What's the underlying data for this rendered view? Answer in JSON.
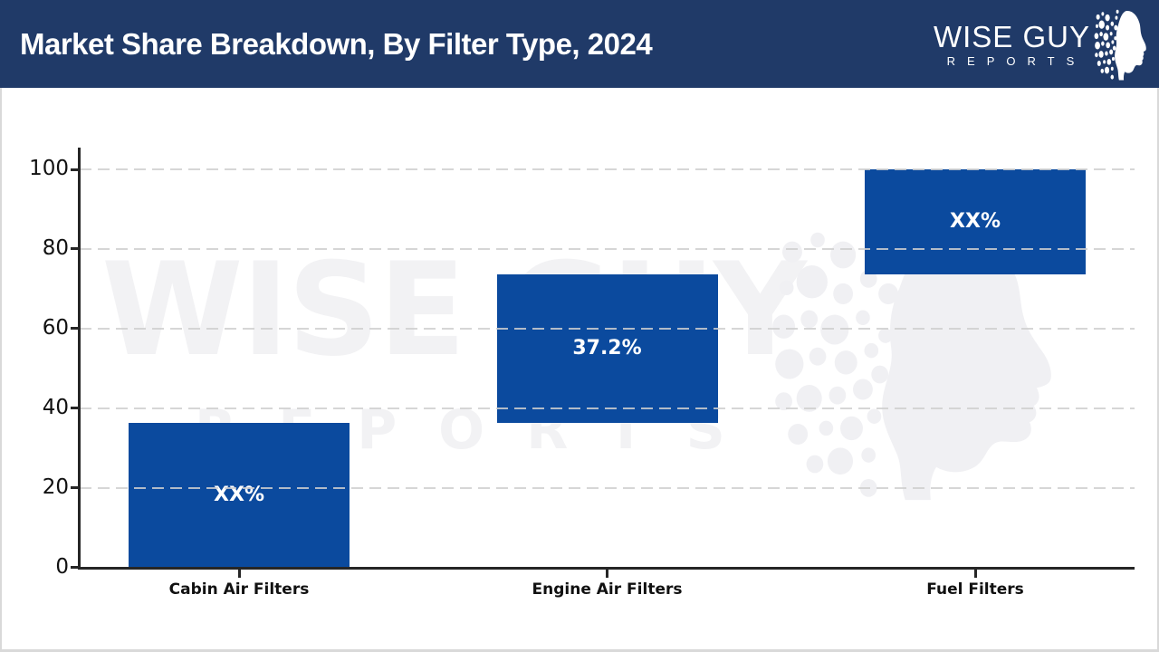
{
  "header": {
    "title": "Market Share Breakdown, By Filter Type, 2024"
  },
  "brand": {
    "line1": "WISE GUY",
    "line2": "REPORTS"
  },
  "watermark": {
    "line1": "WISE GUY",
    "line2": "REPORTS"
  },
  "colors": {
    "header_bg": "#203a68",
    "bar": "#0b4a9e",
    "bar_label": "#ffffff",
    "axis": "#262626",
    "gridline": "#cfcfcf",
    "tick_label": "#111111",
    "watermark": "#f2f2f4",
    "page_edge": "#d9d9d9"
  },
  "chart_data": {
    "type": "bar",
    "subtype": "floating-waterfall",
    "title": "Market Share Breakdown, By Filter Type, 2024",
    "categories": [
      "Cabin Air Filters",
      "Engine Air Filters",
      "Fuel Filters"
    ],
    "series": [
      {
        "name": "Market Share (%)",
        "segments": [
          {
            "category": "Cabin Air Filters",
            "start": 0,
            "end": 36.4,
            "label": "XX%"
          },
          {
            "category": "Engine Air Filters",
            "start": 36.4,
            "end": 73.6,
            "label": "37.2%"
          },
          {
            "category": "Fuel Filters",
            "start": 73.6,
            "end": 100,
            "label": "XX%"
          }
        ]
      }
    ],
    "ylim": [
      0,
      100
    ],
    "yticks": [
      0,
      20,
      40,
      60,
      80,
      100
    ],
    "xlabel": "",
    "ylabel": "",
    "grid": "horizontal-dashed",
    "legend": "none",
    "bar_value_labels": "inside-center"
  }
}
